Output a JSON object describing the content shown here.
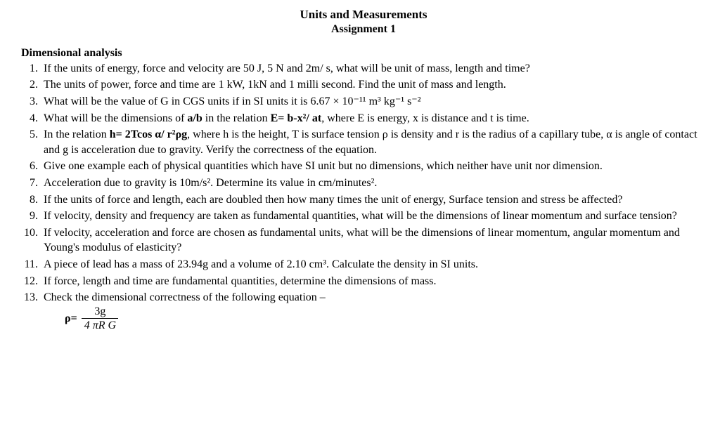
{
  "title": "Units and Measurements",
  "subtitle": "Assignment 1",
  "section_heading": "Dimensional analysis",
  "questions": [
    "If the units of energy, force and velocity are 50 J, 5 N and 2m/ s, what will be unit of mass, length and time?",
    "The units of power, force and time are 1 kW, 1kN and 1 milli second. Find the unit of mass and length.",
    "What will be the value of G in CGS units if in SI units it is 6.67 × 10⁻¹¹ m³ kg⁻¹ s⁻²",
    "What will be the dimensions of a/b in the relation E= b-x²/ at, where E is energy, x is distance and t is time.",
    "In the relation h= 2Tcos α/ r²ρg, where h is the height, T is surface tension ρ is density and r is the radius of a capillary tube, α is angle of contact and g is acceleration due to gravity. Verify the correctness of the equation.",
    "Give one example each of physical quantities which have SI unit but no dimensions, which neither have unit nor dimension.",
    "Acceleration due to gravity is 10m/s². Determine its value in cm/minutes².",
    "If the units of force and length, each are doubled then how many times the unit of energy, Surface tension and stress be affected?",
    "If velocity, density and frequency are taken as fundamental quantities, what will be the dimensions of linear momentum and surface tension?",
    "If velocity, acceleration and force are chosen as fundamental units, what will be the dimensions of linear momentum, angular momentum and Young's modulus of elasticity?",
    "A piece of lead has a mass of 23.94g and a volume of 2.10 cm³. Calculate the density in SI units.",
    "If force, length and time are fundamental quantities, determine the dimensions of mass.",
    "Check the dimensional correctness of the following equation –"
  ],
  "formula": {
    "lhs": "ρ=",
    "numerator": "3g",
    "denominator": "4 πR G"
  }
}
